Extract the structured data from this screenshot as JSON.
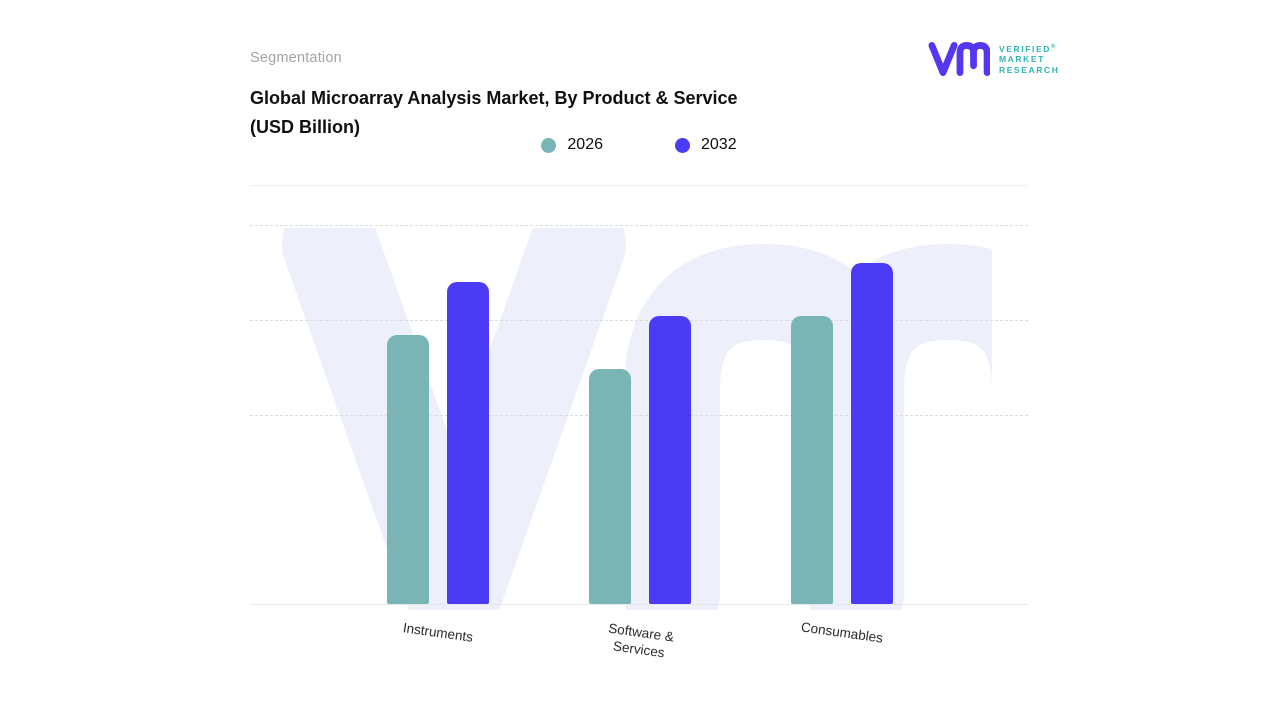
{
  "page": {
    "eyebrow": "Segmentation",
    "title": "Global Microarray Analysis Market, By Product & Service\n(USD Billion)"
  },
  "logo": {
    "lines": [
      "VERIFIED",
      "MARKET",
      "RESEARCH"
    ],
    "registered_mark": "®",
    "text_color": "#2FB4B4",
    "mark_color": "#5437F0"
  },
  "chart_data": {
    "type": "bar",
    "title": "Global Microarray Analysis Market, By Product & Service (USD Billion)",
    "categories": [
      "Instruments",
      "Software &\nServices",
      "Consumables"
    ],
    "series": [
      {
        "name": "2026",
        "color": "#7AB5B6",
        "values": [
          71,
          62,
          76
        ]
      },
      {
        "name": "2032",
        "color": "#4B3BF5",
        "values": [
          85,
          76,
          90
        ]
      }
    ],
    "xlabel": "",
    "ylabel": "",
    "ylim": [
      0,
      100
    ],
    "gridlines_at": [
      100,
      75,
      50
    ],
    "grid": "dashed-horizontal",
    "legend_position": "top-center",
    "y_axis_labels_visible": false
  }
}
